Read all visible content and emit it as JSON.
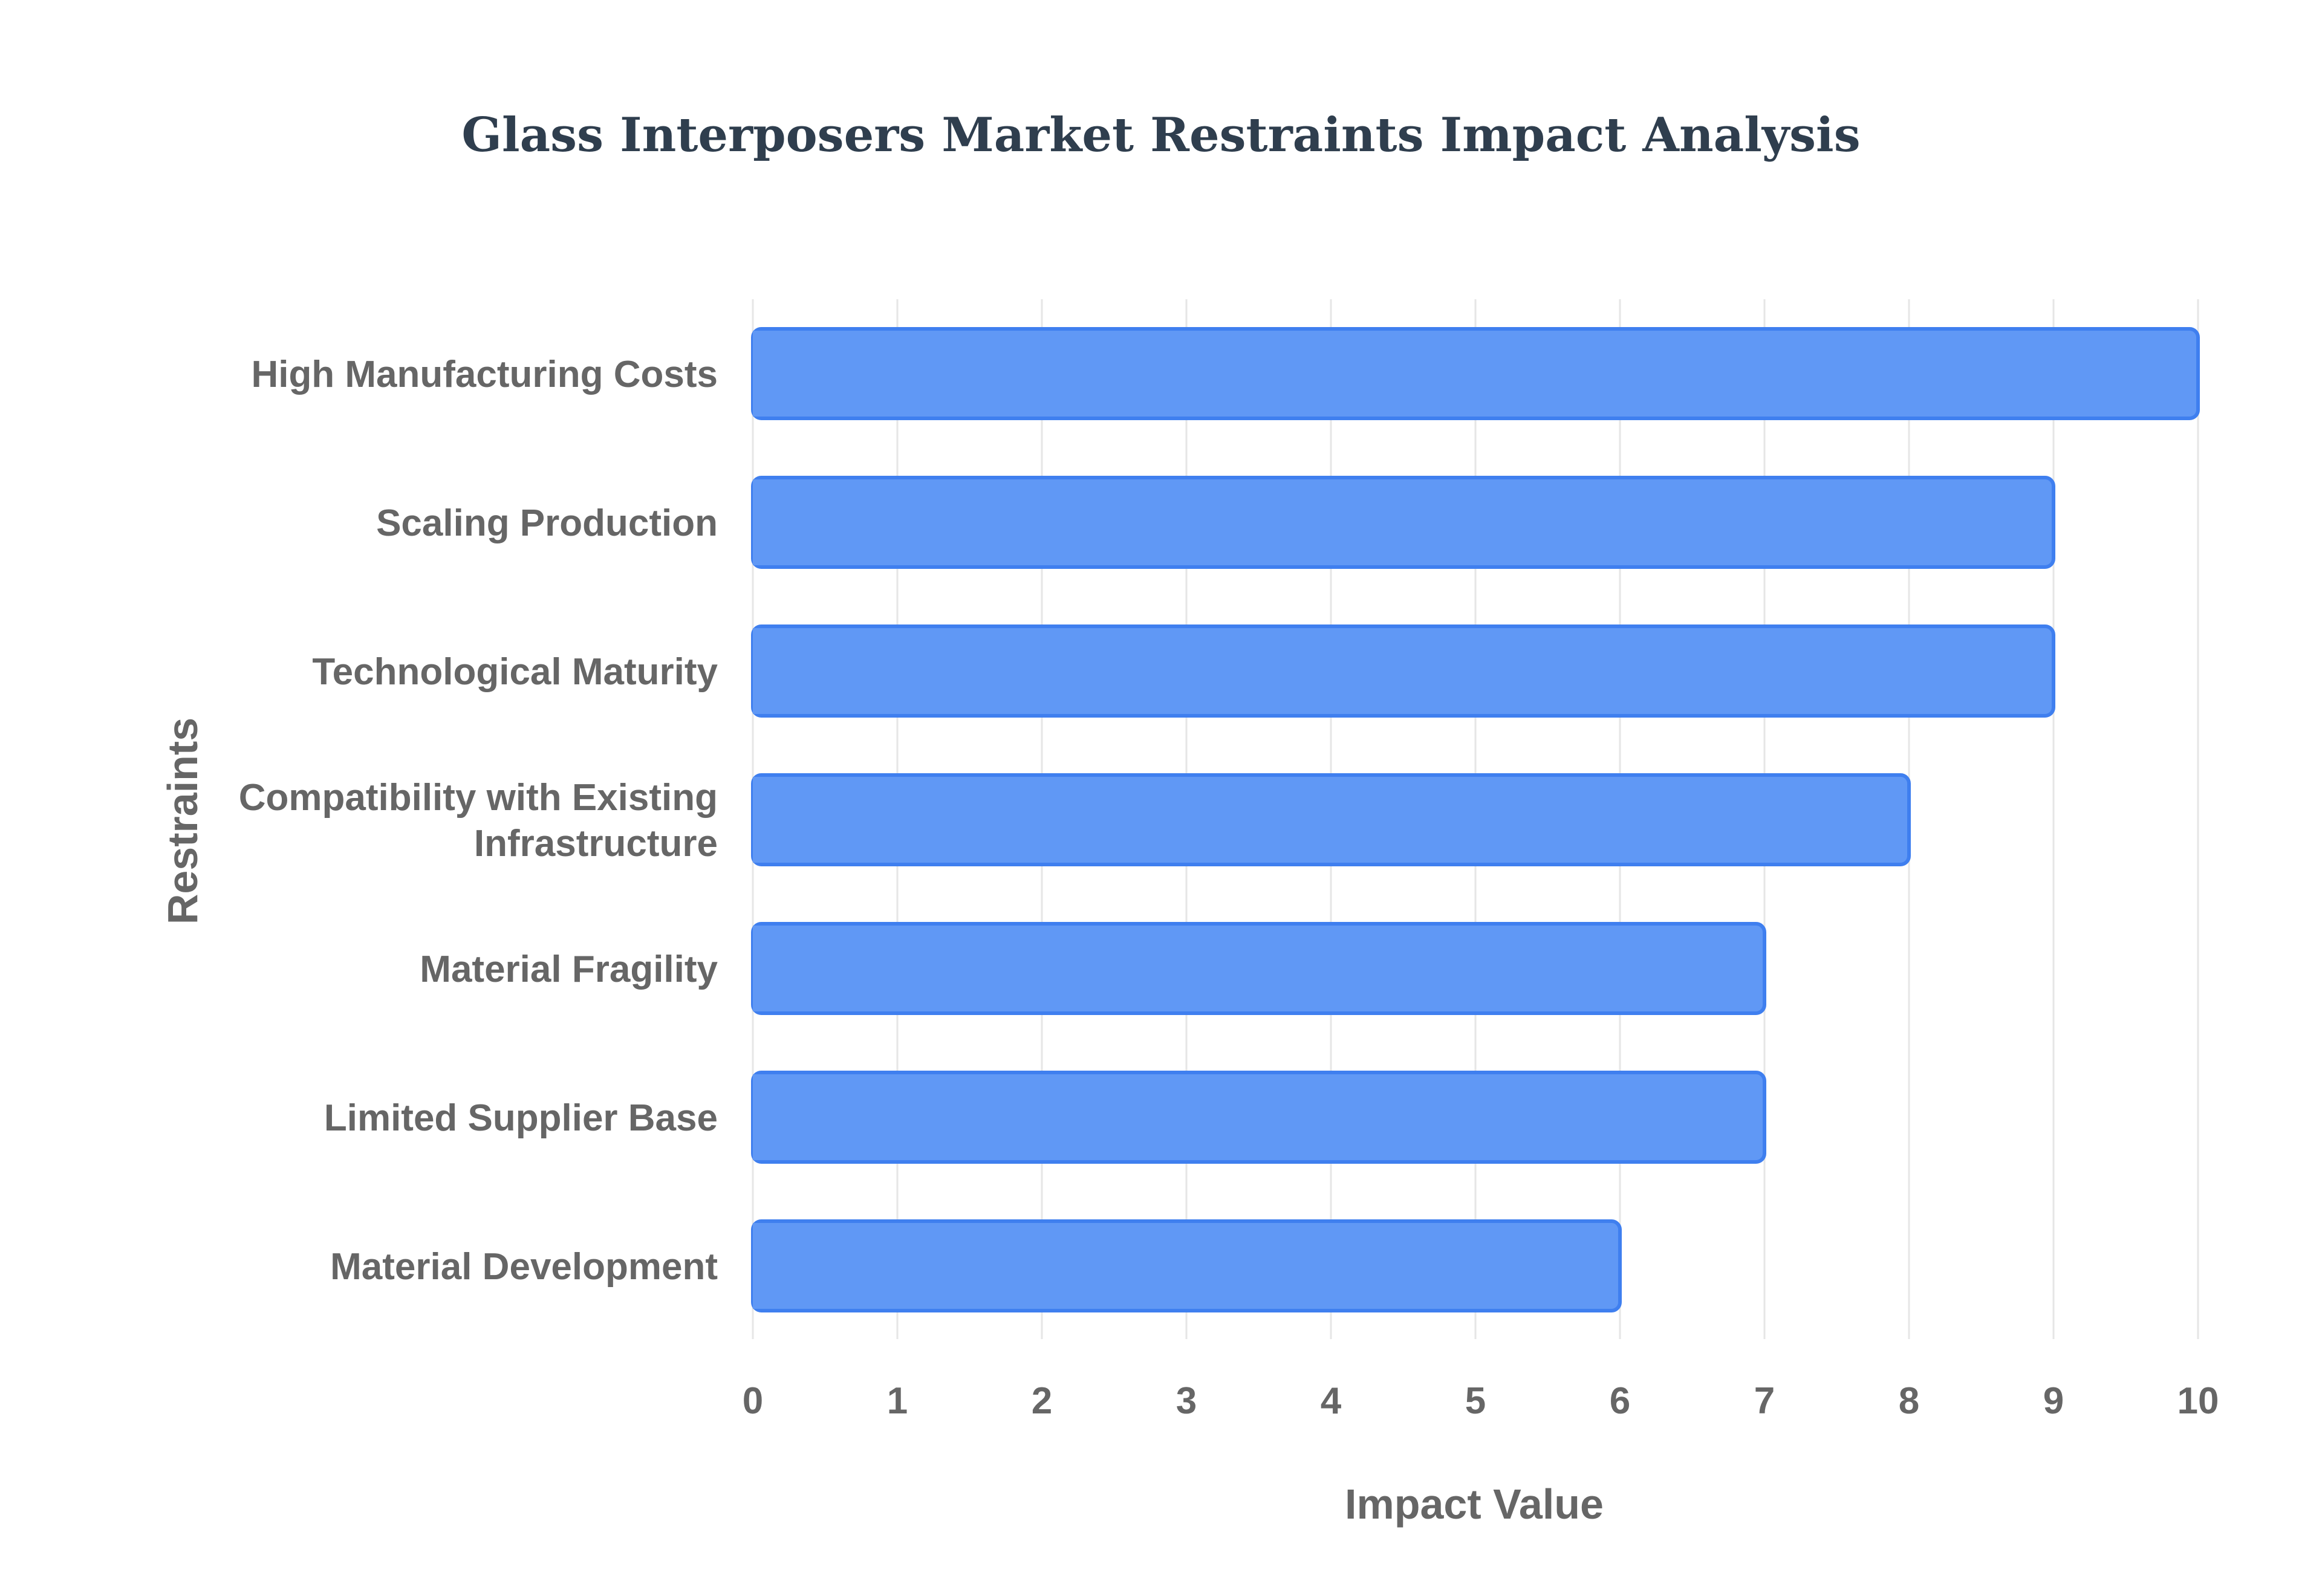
{
  "chart_data": {
    "type": "bar",
    "orientation": "horizontal",
    "title": "Glass Interposers Market Restraints Impact Analysis",
    "xlabel": "Impact Value",
    "ylabel": "Restraints",
    "categories": [
      [
        "High Manufacturing Costs"
      ],
      [
        "Scaling Production"
      ],
      [
        "Technological Maturity"
      ],
      [
        "Compatibility with Existing",
        "Infrastructure"
      ],
      [
        "Material Fragility"
      ],
      [
        "Limited Supplier Base"
      ],
      [
        "Material Development"
      ]
    ],
    "values": [
      10,
      9,
      9,
      8,
      7,
      7,
      6
    ],
    "xlim": [
      0,
      10
    ],
    "xticks": [
      0,
      1,
      2,
      3,
      4,
      5,
      6,
      7,
      8,
      9,
      10
    ],
    "grid": true,
    "legend": "none",
    "colors": {
      "bar_fill": "#6098f5",
      "bar_stroke": "#3f7fef",
      "title": "#2f3e4e",
      "text": "#666666",
      "grid": "#e6e6e6"
    }
  }
}
